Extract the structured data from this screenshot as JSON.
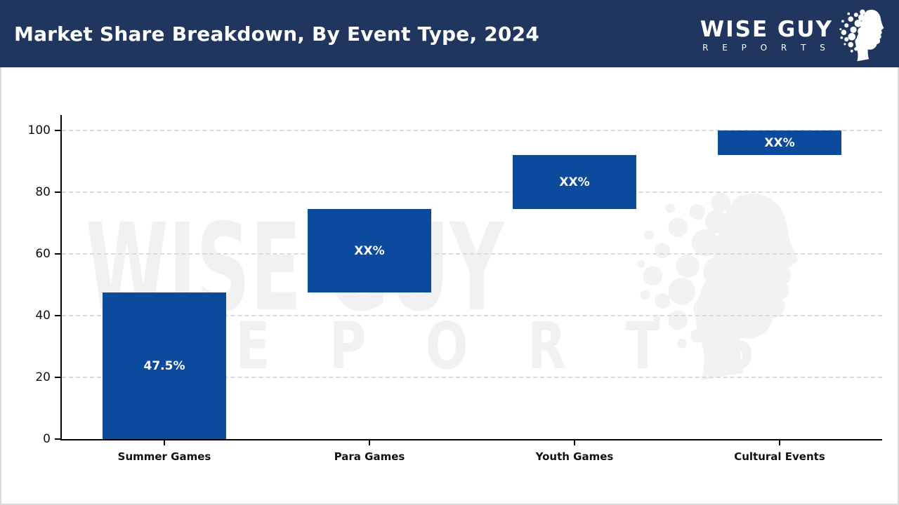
{
  "header": {
    "title": "Market Share Breakdown, By Event Type, 2024",
    "bg_color": "#21365F",
    "logo": {
      "line1": "WISE GUY",
      "line2": "R E P O R T S"
    }
  },
  "watermark": {
    "line1": "WISE GUY",
    "line2": "R E P O R T S"
  },
  "chart_data": {
    "type": "bar",
    "subtype": "waterfall",
    "title": "Market Share Breakdown, By Event Type, 2024",
    "categories": [
      "Summer Games",
      "Para Games",
      "Youth Games",
      "Cultural Events"
    ],
    "bars": [
      {
        "category": "Summer Games",
        "start": 0,
        "end": 47.5,
        "label": "47.5%"
      },
      {
        "category": "Para Games",
        "start": 47.5,
        "end": 74.5,
        "label": "XX%"
      },
      {
        "category": "Youth Games",
        "start": 74.5,
        "end": 92,
        "label": "XX%"
      },
      {
        "category": "Cultural Events",
        "start": 92,
        "end": 100,
        "label": "XX%"
      }
    ],
    "yticks": [
      0,
      20,
      40,
      60,
      80,
      100
    ],
    "ylim": [
      0,
      105
    ],
    "grid": true,
    "legend": false,
    "bar_color": "#0C4A9E",
    "bar_label_color": "#FFFFFF",
    "axis_color": "#000000",
    "gridline_color": "#DBDBDB",
    "xlabel": "",
    "ylabel": ""
  }
}
